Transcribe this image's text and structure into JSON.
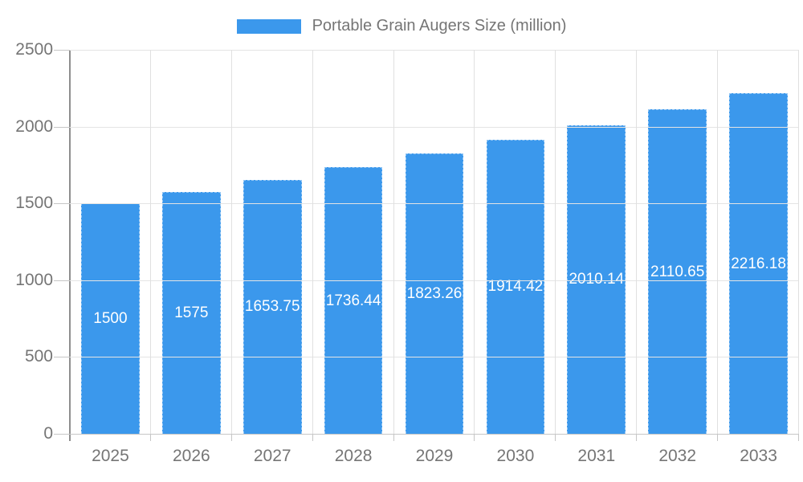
{
  "legend": {
    "label": "Portable Grain Augers Size (million)"
  },
  "colors": {
    "bar": "#3b98ec",
    "axis_text": "#757575",
    "grid_line": "#e3e3e3",
    "axis_line": "#8e8e8e",
    "tick_line": "#c6c6c6",
    "value_label": "#ffffff"
  },
  "chart_data": {
    "type": "bar",
    "title": "Portable Grain Augers Size (million)",
    "categories": [
      "2025",
      "2026",
      "2027",
      "2028",
      "2029",
      "2030",
      "2031",
      "2032",
      "2033"
    ],
    "values": [
      1500,
      1575,
      1653.75,
      1736.44,
      1823.26,
      1914.42,
      2010.14,
      2110.65,
      2216.18
    ],
    "value_labels": [
      "1500",
      "1575",
      "1653.75",
      "1736.44",
      "1823.26",
      "1914.42",
      "2010.14",
      "2110.65",
      "2216.18"
    ],
    "xlabel": "",
    "ylabel": "",
    "ylim": [
      0,
      2500
    ],
    "yticks": [
      0,
      500,
      1000,
      1500,
      2000,
      2500
    ],
    "grid": "on",
    "legend_position": "top-center",
    "series_name": "Portable Grain Augers Size (million)"
  }
}
